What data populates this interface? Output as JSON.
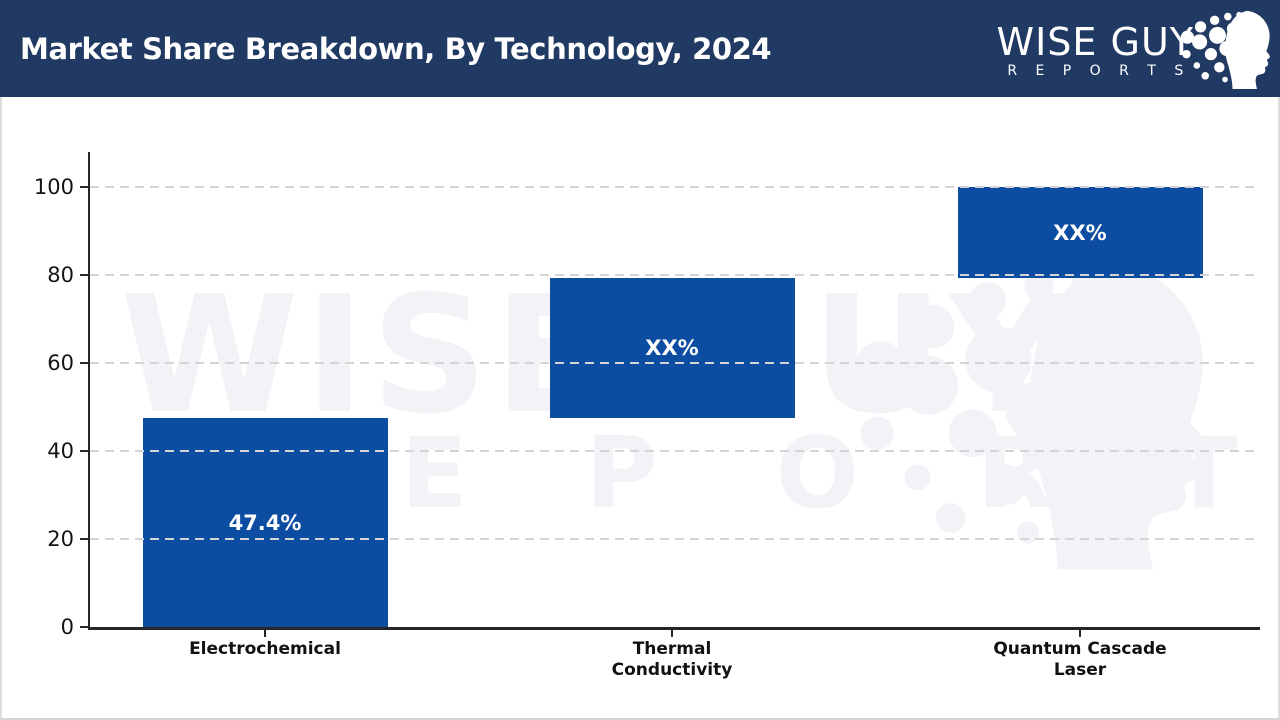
{
  "header": {
    "title": "Market Share Breakdown, By Technology, 2024",
    "logo": {
      "name_top": "WISE GUY",
      "name_bottom": "R E P O R T S"
    }
  },
  "watermark": {
    "line1": "WISE GUY",
    "line2": "R E P O R T S"
  },
  "chart_data": {
    "type": "bar",
    "subtype": "waterfall",
    "title": "Market Share Breakdown, By Technology, 2024",
    "categories": [
      [
        "Electrochemical"
      ],
      [
        "Thermal",
        "Conductivity"
      ],
      [
        "Quantum Cascade",
        "Laser"
      ]
    ],
    "segments": [
      {
        "category": "Electrochemical",
        "start": 0,
        "end": 47.4,
        "label": "47.4%"
      },
      {
        "category": "Thermal Conductivity",
        "start": 47.4,
        "end": 79.3,
        "label": "XX%"
      },
      {
        "category": "Quantum Cascade Laser",
        "start": 79.3,
        "end": 100,
        "label": "XX%"
      }
    ],
    "ylim": [
      0,
      100
    ],
    "yticks": [
      0,
      20,
      40,
      60,
      80,
      100
    ],
    "grid": "horizontal-dashed",
    "legend": false,
    "colors": {
      "bar": "#0c4da2",
      "bar_label": "#ffffff",
      "header_bg": "#213a63",
      "axis": "#262626",
      "gridline": "#d4d4d4",
      "watermark": "#f2f3f6"
    }
  }
}
